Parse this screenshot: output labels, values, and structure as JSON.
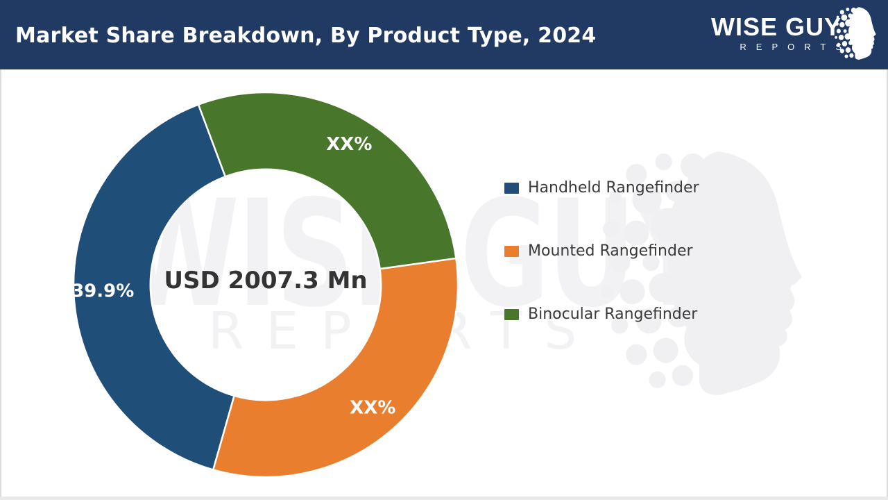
{
  "header": {
    "title": "Market Share Breakdown, By Product Type, 2024",
    "logo": {
      "line1": "WISE GUY",
      "line2": "REPORTS"
    }
  },
  "watermark": {
    "line1": "WISE GUY",
    "line2": "REPORTS"
  },
  "chart_data": {
    "type": "donut",
    "title": "Market Share Breakdown, By Product Type, 2024",
    "center_label": "USD 2007.3 Mn",
    "start_angle_deg": 110.5,
    "direction": "counterclockwise",
    "inner_radius_ratio": 0.6,
    "legend_position": "right",
    "slices": [
      {
        "label": "Handheld Rangefinder",
        "value_pct": 39.9,
        "display": "39.9%",
        "color": "#1F4E79"
      },
      {
        "label": "Mounted Rangefinder",
        "value_pct": 31.6,
        "display": "XX%",
        "color": "#E87E2E"
      },
      {
        "label": "Binocular Rangefinder",
        "value_pct": 28.5,
        "display": "XX%",
        "color": "#48762B"
      }
    ]
  },
  "colors": {
    "header_bg": "#213A64",
    "watermark": "#F2F2F4",
    "center_text": "#333333",
    "legend_text": "#3A3A3A",
    "bottom_strip": "#E9E9EB"
  }
}
